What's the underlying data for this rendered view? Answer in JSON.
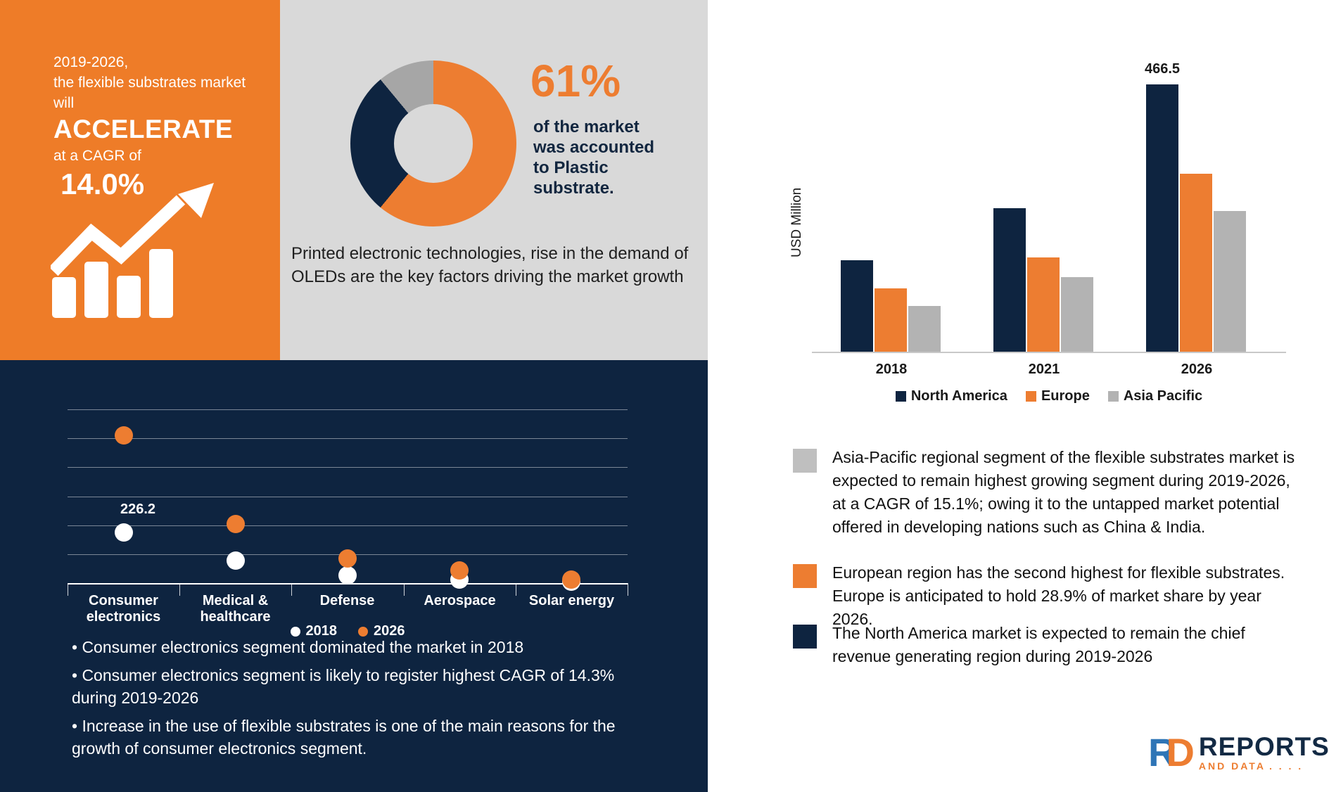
{
  "colors": {
    "orange": "#ED7D31",
    "orange_panel": "#EE7C28",
    "navy": "#0E2440",
    "panel_gray": "#D9D9D9",
    "bar_gray": "#B3B3B3",
    "insight_gray": "#BFBFBF",
    "logo_blue": "#2E75B6"
  },
  "promo": {
    "line1": "2019-2026,",
    "line2": "the flexible substrates market",
    "line3": "will",
    "accelerate": "ACCELERATE",
    "cagr_prefix": "at a CAGR of",
    "cagr_value": "14.0%"
  },
  "plastic": {
    "pct": "61%",
    "caption": "of the market was accounted to Plastic substrate.",
    "paragraph": "Printed electronic technologies, rise in the demand  of OLEDs are the key factors driving the  market growth"
  },
  "insights": [
    {
      "color": "#BFBFBF",
      "text": "Asia-Pacific regional segment of the flexible substrates market is expected to remain highest growing segment during 2019-2026, at a CAGR of 15.1%; owing it to the untapped market potential offered in developing nations such as China & India."
    },
    {
      "color": "#ED7D31",
      "text": " European region has the second highest for flexible substrates. Europe is anticipated to hold 28.9% of market share by year 2026."
    },
    {
      "color": "#0E2440",
      "text": "The North America market  is expected to remain the chief revenue generating region during 2019-2026"
    }
  ],
  "segments": {
    "bullets": [
      "• Consumer electronics  segment dominated the market in 2018",
      "• Consumer electronics segment is likely to register highest CAGR of 14.3% during 2019-2026",
      "• Increase in the use of flexible substrates is one of the main reasons for the growth of consumer electronics segment."
    ]
  },
  "logo": {
    "name_top": "REPORTS",
    "name_bottom": "AND DATA",
    "dots": ". . . ."
  },
  "chart_data": [
    {
      "id": "plastic-share-donut",
      "type": "pie",
      "slices": [
        {
          "label": "Plastic substrate",
          "value": 61,
          "color": "#ED7D31"
        },
        {
          "label": "unlabeled",
          "value": 28,
          "color": "#0E2440"
        },
        {
          "label": "unlabeled",
          "value": 11,
          "color": "#A6A6A6"
        }
      ],
      "annotation": "61% of the market was accounted to Plastic substrate."
    },
    {
      "id": "regional-bars",
      "type": "bar",
      "ylabel": "USD Million",
      "categories": [
        "2018",
        "2021",
        "2026"
      ],
      "series": [
        {
          "name": "North America",
          "color": "#0E2440",
          "values": [
            160,
            250,
            466.5
          ]
        },
        {
          "name": "Europe",
          "color": "#ED7D31",
          "values": [
            110,
            165,
            310
          ]
        },
        {
          "name": "Asia Pacific",
          "color": "#B3B3B3",
          "values": [
            80,
            130,
            245
          ]
        }
      ],
      "data_labels": [
        {
          "series": "North America",
          "category": "2026",
          "text": "466.5"
        }
      ],
      "legend_position": "bottom",
      "ylim": [
        0,
        500
      ]
    },
    {
      "id": "segment-scatter",
      "type": "scatter",
      "categories": [
        "Consumer\nelectronics",
        "Medical &\nhealthcare",
        "Defense",
        "Aerospace",
        "Solar energy"
      ],
      "series": [
        {
          "name": "2018",
          "color": "#FFFFFF",
          "values": [
            226.2,
            100,
            35,
            15,
            5
          ]
        },
        {
          "name": "2026",
          "color": "#ED7D31",
          "values": [
            660,
            265,
            110,
            55,
            15
          ]
        }
      ],
      "data_labels": [
        {
          "series": "2018",
          "category": "Consumer\nelectronics",
          "text": "226.2"
        }
      ],
      "legend_position": "bottom",
      "grid": true
    }
  ]
}
